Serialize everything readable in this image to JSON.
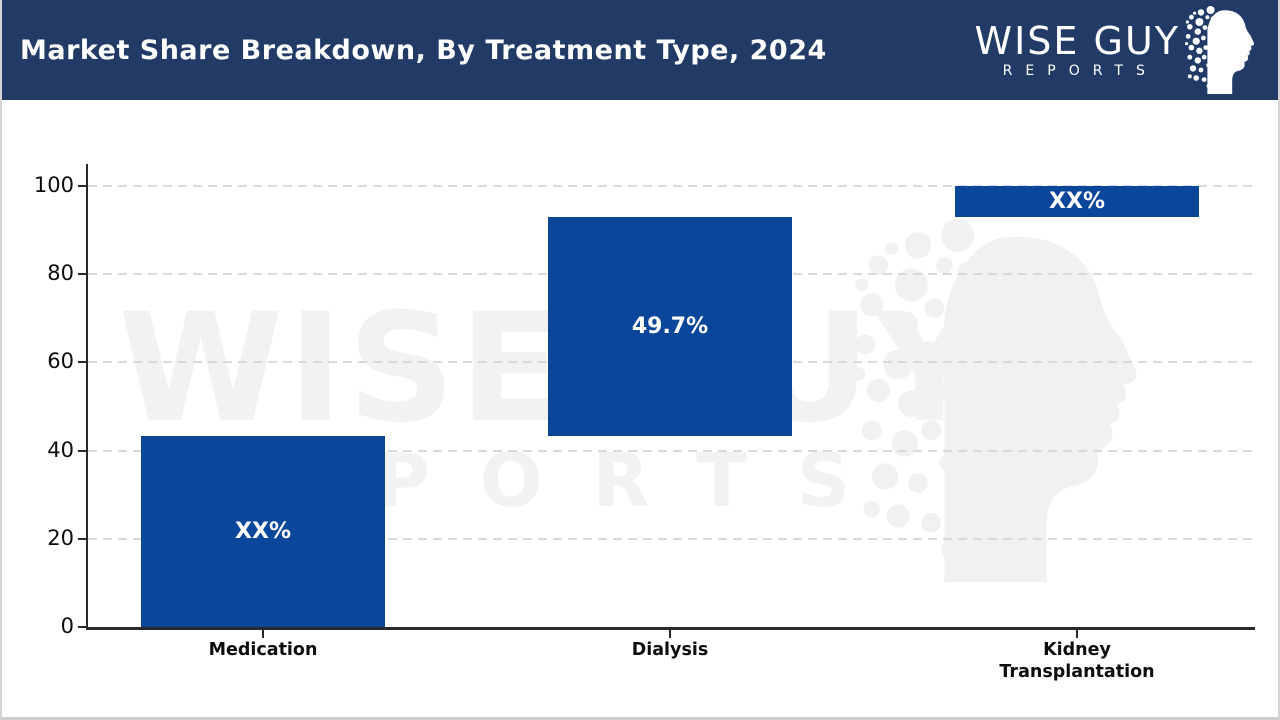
{
  "header": {
    "title": "Market Share Breakdown, By Treatment Type, 2024",
    "logo": {
      "line1": "WISE GUY",
      "line2": "REPORTS"
    }
  },
  "watermark": {
    "line1": "WISE GUY",
    "line2": "REPORTS"
  },
  "chart_data": {
    "type": "bar",
    "subtype": "floating-waterfall",
    "title": "Market Share Breakdown, By Treatment Type, 2024",
    "categories": [
      "Medication",
      "Dialysis",
      "Kidney Transplantation"
    ],
    "category_label_lines": [
      [
        "Medication"
      ],
      [
        "Dialysis"
      ],
      [
        "Kidney",
        "Transplantation"
      ]
    ],
    "values": [
      43.3,
      49.7,
      7.0
    ],
    "segment_start": [
      0,
      43.3,
      93
    ],
    "segment_end": [
      43.3,
      93,
      100
    ],
    "bar_labels": [
      "XX%",
      "49.7%",
      "XX%"
    ],
    "xlabel": "",
    "ylabel": "",
    "yticks": [
      0,
      20,
      40,
      60,
      80,
      100
    ],
    "ylim": [
      0,
      104.7
    ],
    "grid": "horizontal-dashed",
    "legend": null,
    "bar_color": "#0A4699",
    "bar_label_color": "#ffffff"
  },
  "colors": {
    "header_bg": "#213A66",
    "bar_fill": "#0A4699",
    "grid_line": "#D9D9D9",
    "axis_line": "#2A2A2A",
    "watermark": "#F2F2F2",
    "edge_hairline": "#CCCCCC"
  }
}
